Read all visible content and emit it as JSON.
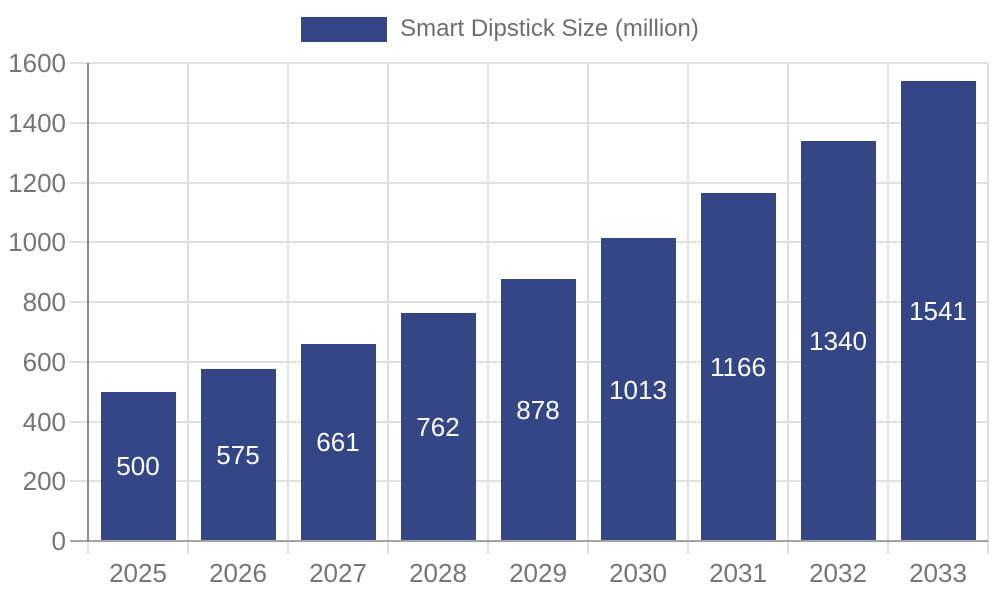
{
  "chart_data": {
    "type": "bar",
    "title": "Smart Dipstick Size (million)",
    "legend": [
      "Smart Dipstick Size (million)"
    ],
    "legend_position": "top-center",
    "categories": [
      "2025",
      "2026",
      "2027",
      "2028",
      "2029",
      "2030",
      "2031",
      "2032",
      "2033"
    ],
    "values": [
      500,
      575,
      661,
      762,
      878,
      1013,
      1166,
      1340,
      1541
    ],
    "xlabel": "",
    "ylabel": "",
    "ylim": [
      0,
      1600
    ],
    "yticks": [
      0,
      200,
      400,
      600,
      800,
      1000,
      1200,
      1400,
      1600
    ],
    "grid": true,
    "bar_value_labels": true,
    "bar_width_fraction": 0.75
  },
  "colors": {
    "bar": "#344685",
    "grid": "#e0e0e0",
    "axis": "#a3a3a3",
    "spine": "#8a8a8a",
    "tick_text": "#757575",
    "legend_text": "#6e6e6e",
    "bar_label_text": "#ffffff",
    "background": "#ffffff"
  }
}
